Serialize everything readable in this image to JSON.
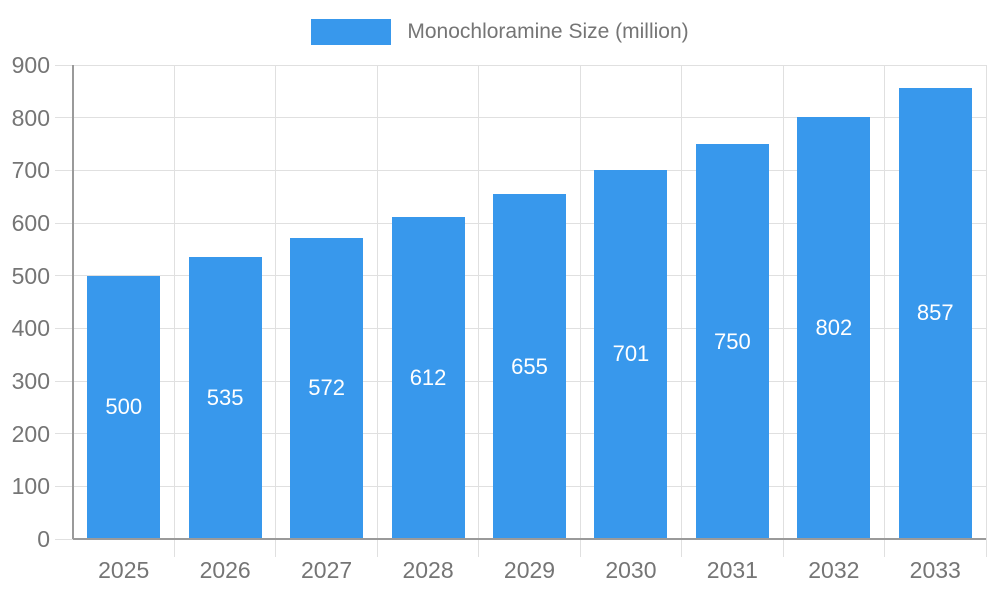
{
  "legend": {
    "label": "Monochloramine Size (million)"
  },
  "chart_data": {
    "type": "bar",
    "title": "",
    "categories": [
      "2025",
      "2026",
      "2027",
      "2028",
      "2029",
      "2030",
      "2031",
      "2032",
      "2033"
    ],
    "series": [
      {
        "name": "Monochloramine Size (million)",
        "values": [
          500,
          535,
          572,
          612,
          655,
          701,
          750,
          802,
          857
        ]
      }
    ],
    "xlabel": "",
    "ylabel": "",
    "ylim": [
      0,
      900
    ],
    "yticks": [
      0,
      100,
      200,
      300,
      400,
      500,
      600,
      700,
      800,
      900
    ],
    "grid": true,
    "legend_position": "top",
    "value_labels": "inside-center"
  },
  "colors": {
    "bar": "#3898ec",
    "grid": "#e0e0e0",
    "axis": "#9a9a9a",
    "tick_text": "#757575",
    "value_text": "#ffffff"
  }
}
